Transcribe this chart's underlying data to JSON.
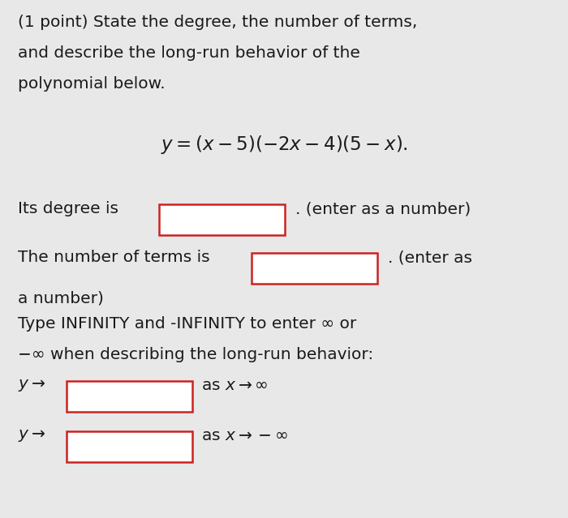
{
  "bg_color": "#e8e8e8",
  "text_color": "#1a1a1a",
  "box_color": "#cc2222",
  "title_line1": "(1 point) State the degree, the number of terms,",
  "title_line2": "and describe the long-run behavior of the",
  "title_line3": "polynomial below.",
  "font_size_body": 14.5,
  "font_size_eq": 16.5
}
